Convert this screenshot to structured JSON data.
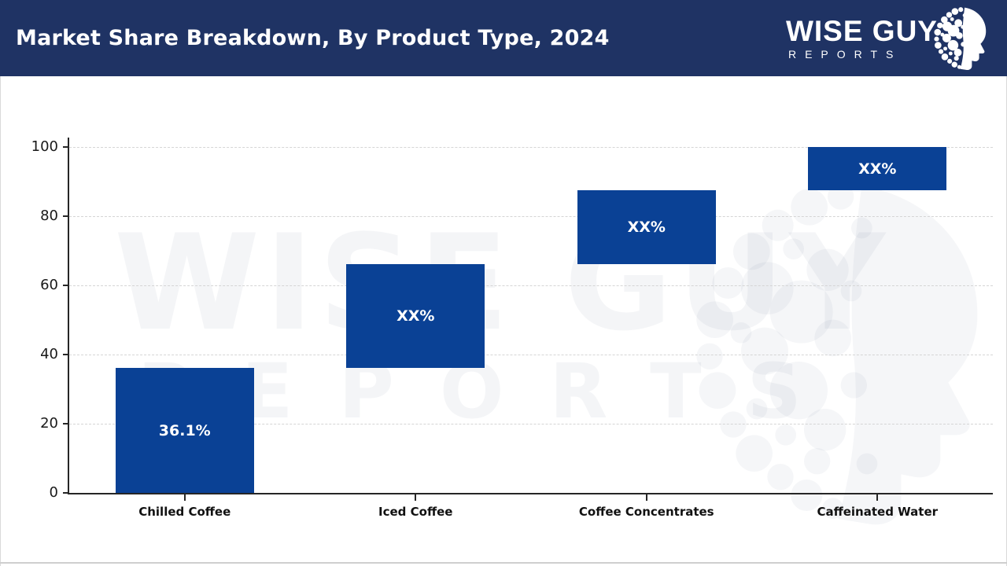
{
  "header": {
    "title": "Market Share Breakdown, By Product Type, 2024",
    "logo": {
      "line1": "WISE GUY",
      "line2": "REPORTS"
    }
  },
  "watermark": {
    "line1": "WISE GUY",
    "line2": "REPORTS"
  },
  "colors": {
    "header_bg": "#1f3364",
    "bar_blue": "#0a4195",
    "bar_label": "#ffffff",
    "axis": "#262626",
    "gridline": "#d5d5d5"
  },
  "chart_data": {
    "type": "bar",
    "variant": "waterfall",
    "title": "Market Share Breakdown, By Product Type, 2024",
    "categories": [
      "Chilled Coffee",
      "Iced Coffee",
      "Coffee Concentrates",
      "Caffeinated Water"
    ],
    "segments": [
      {
        "category": "Chilled Coffee",
        "start": 0,
        "end": 36.1,
        "value": 36.1,
        "label": "36.1%"
      },
      {
        "category": "Iced Coffee",
        "start": 36.1,
        "end": 66.1,
        "value": 30.0,
        "label": "XX%"
      },
      {
        "category": "Coffee Concentrates",
        "start": 66.1,
        "end": 87.5,
        "value": 21.4,
        "label": "XX%"
      },
      {
        "category": "Caffeinated Water",
        "start": 87.5,
        "end": 100,
        "value": 12.5,
        "label": "XX%"
      }
    ],
    "ylim": [
      0,
      100
    ],
    "yticks": [
      0,
      20,
      40,
      60,
      80,
      100
    ],
    "grid": "horizontal-dashed",
    "legend": "none",
    "bar_color": "#0a4195",
    "bar_label_color": "#ffffff"
  }
}
